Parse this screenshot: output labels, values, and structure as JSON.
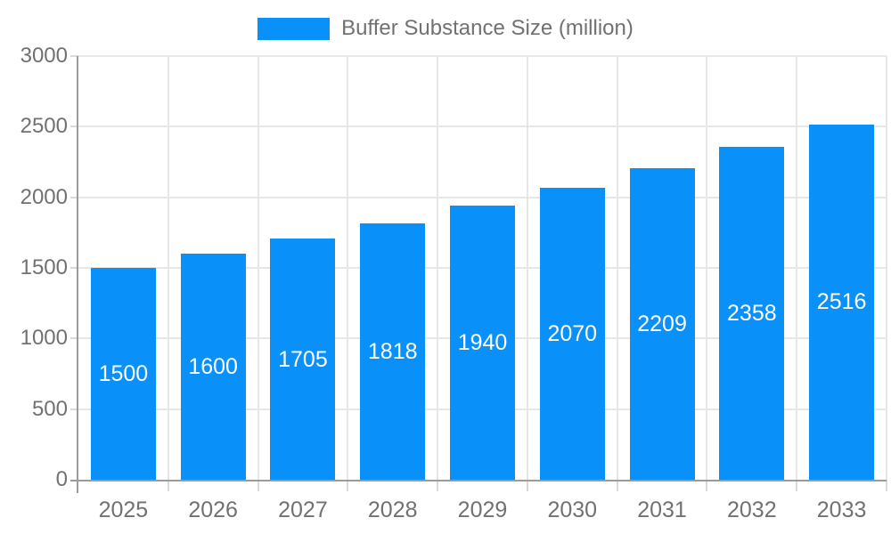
{
  "chart_data": {
    "type": "bar",
    "title": "",
    "legend": {
      "label": "Buffer Substance Size (million)",
      "position": "top-center"
    },
    "categories": [
      "2025",
      "2026",
      "2027",
      "2028",
      "2029",
      "2030",
      "2031",
      "2032",
      "2033"
    ],
    "series": [
      {
        "name": "Buffer Substance Size (million)",
        "values": [
          1500,
          1600,
          1705,
          1818,
          1940,
          2070,
          2209,
          2358,
          2516
        ]
      }
    ],
    "value_labels": {
      "position": "inside-center",
      "color": "#ffffff"
    },
    "xlabel": "",
    "ylabel": "",
    "ylim": [
      0,
      3000
    ],
    "yticks": [
      0,
      500,
      1000,
      1500,
      2000,
      2500,
      3000
    ],
    "grid": {
      "horizontal": true,
      "vertical": true
    }
  },
  "colors": {
    "bar": "#0990f9",
    "axis_text": "#717171",
    "legend_text": "#717171",
    "gridline": "#e7e7e7",
    "tick": "#d9d9d9",
    "axis_line": "#9b9b9b",
    "background": "#ffffff"
  }
}
